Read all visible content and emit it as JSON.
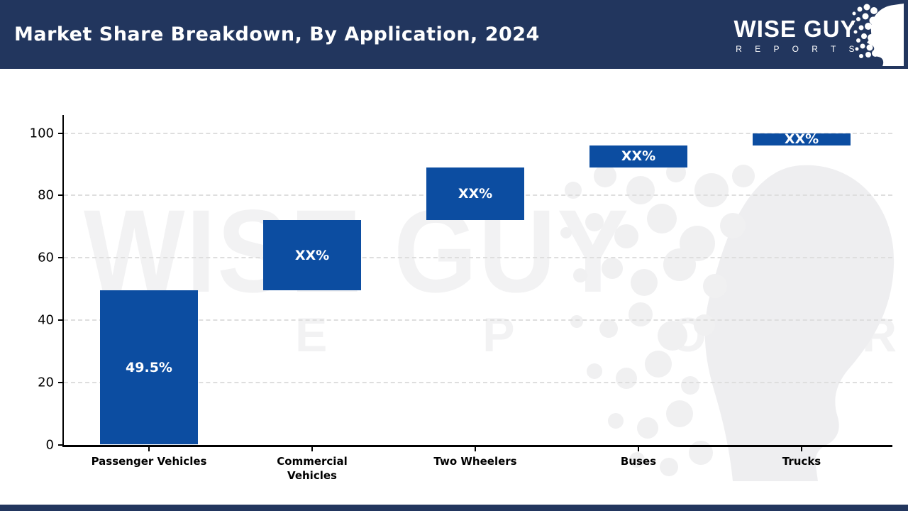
{
  "header": {
    "title": "Market Share Breakdown, By Application, 2024",
    "logo": {
      "name": "WISE GUY",
      "sub": "R E P O R T S"
    }
  },
  "watermark": {
    "line1": "WISE GUY",
    "line2": "R E P O R T S"
  },
  "chart_data": {
    "type": "bar",
    "subtype": "waterfall-stacked-percentage",
    "title": "Market Share Breakdown, By Application, 2024",
    "categories": [
      "Passenger Vehicles",
      "Commercial\nVehicles",
      "Two Wheelers",
      "Buses",
      "Trucks"
    ],
    "segments": [
      {
        "category": "Passenger Vehicles",
        "start": 0,
        "end": 49.5,
        "label": "49.5%"
      },
      {
        "category": "Commercial Vehicles",
        "start": 49.5,
        "end": 72,
        "label": "XX%"
      },
      {
        "category": "Two Wheelers",
        "start": 72,
        "end": 89,
        "label": "XX%"
      },
      {
        "category": "Buses",
        "start": 89,
        "end": 96,
        "label": "XX%"
      },
      {
        "category": "Trucks",
        "start": 96,
        "end": 100,
        "label": "XX%"
      }
    ],
    "yticks": [
      0,
      20,
      40,
      60,
      80,
      100
    ],
    "ylim": [
      0,
      105
    ],
    "xlabel": "",
    "ylabel": "",
    "grid": "horizontal-dashed",
    "legend": "none",
    "bar_color": "#0c4da1",
    "bar_label_color": "#ffffff"
  },
  "colors": {
    "header_bg": "#22365e",
    "footer_bg": "#22365e",
    "bar": "#0c4da1",
    "axis": "#000000",
    "gridline": "#dedede",
    "watermark": "#f2f2f3",
    "title_text": "#ffffff",
    "label_text": "#000000"
  }
}
